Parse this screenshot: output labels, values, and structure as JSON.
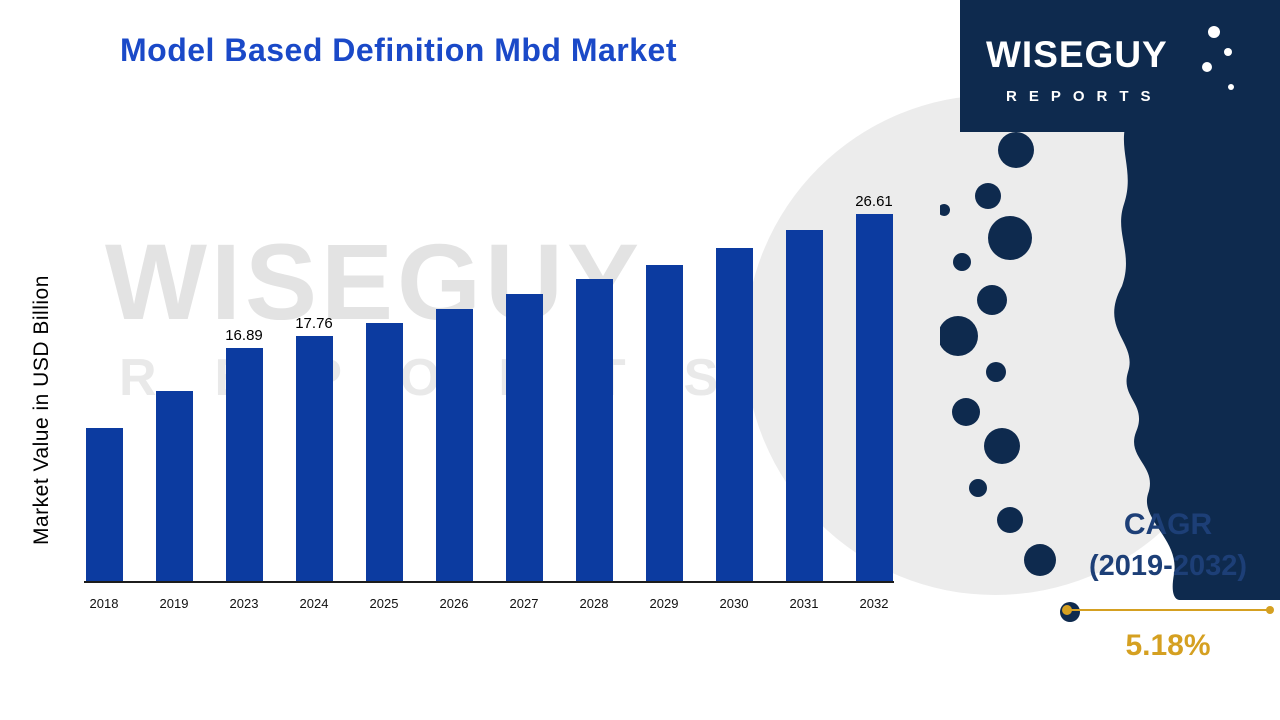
{
  "title": "Model Based Definition Mbd Market",
  "logo": {
    "line1": "WISEGUY",
    "line2": "REPORTS"
  },
  "watermark": {
    "line1": "WISEGUY",
    "line2": "REPORTS"
  },
  "chart_data": {
    "type": "bar",
    "title": "Model Based Definition Mbd Market",
    "xlabel": "",
    "ylabel": "Market Value in USD Billion",
    "categories": [
      "2018",
      "2019",
      "2023",
      "2024",
      "2025",
      "2026",
      "2027",
      "2028",
      "2029",
      "2030",
      "2031",
      "2032"
    ],
    "values": [
      11.1,
      13.8,
      16.89,
      17.76,
      18.7,
      19.7,
      20.8,
      21.9,
      22.9,
      24.1,
      25.4,
      26.61
    ],
    "value_labels": [
      "",
      "",
      "16.89",
      "17.76",
      "",
      "",
      "",
      "",
      "",
      "",
      "",
      "26.61"
    ],
    "ylim": [
      0,
      28
    ],
    "grid": false,
    "legend": "none",
    "bar_color": "#0c3ba0"
  },
  "cagr": {
    "label": "CAGR",
    "range": "(2019-2032)",
    "value": "5.18%"
  },
  "colors": {
    "title_blue": "#1a49c8",
    "bar_blue": "#0c3ba0",
    "logo_navy": "#0e2a4e",
    "cagr_navy": "#1d3f77",
    "gold": "#d5a021",
    "watermark_gray": "#e3e3e3",
    "circle_gray": "#ececec"
  }
}
